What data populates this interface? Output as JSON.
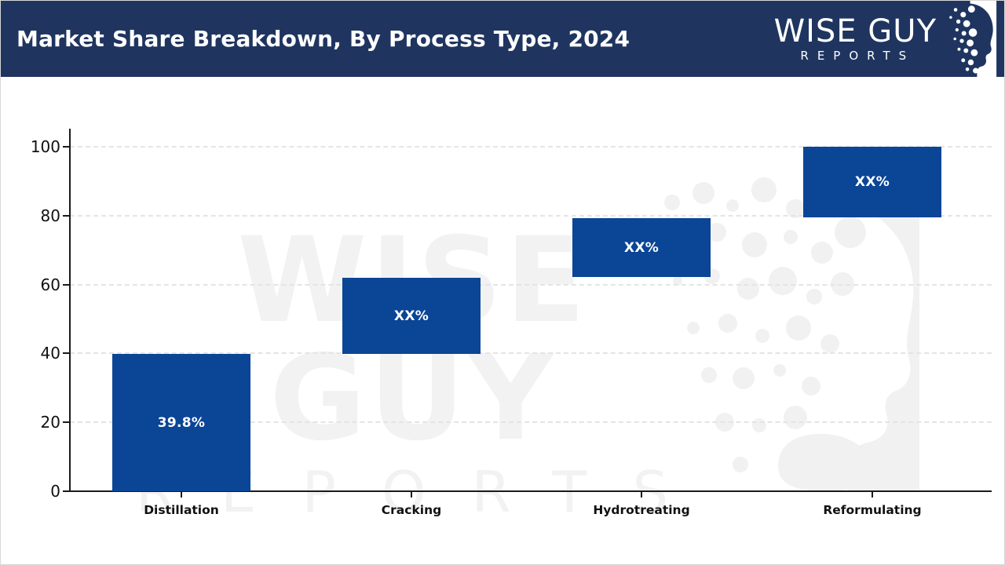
{
  "page": {
    "header": {
      "title": "Market Share Breakdown, By Process Type, 2024",
      "logo_line1": "WISE GUY",
      "logo_line2": "REPORTS"
    },
    "watermark": {
      "line1": "WISE GUY",
      "line2": "REPORTS"
    },
    "colors": {
      "header_bg": "#1f3560",
      "bar_blue": "#0b4596",
      "axis": "#1a1a1a",
      "gridline": "#e4e4e4",
      "watermark_gray": "#f2f2f2",
      "title_text": "#ffffff"
    }
  },
  "chart_data": {
    "type": "bar",
    "subtype": "waterfall",
    "title": "Market Share Breakdown, By Process Type, 2024",
    "categories": [
      "Distillation",
      "Cracking",
      "Hydrotreating",
      "Reformulating"
    ],
    "segments": [
      {
        "category": "Distillation",
        "start": 0,
        "end": 39.8,
        "label": "39.8%"
      },
      {
        "category": "Cracking",
        "start": 39.9,
        "end": 61.9,
        "label": "XX%"
      },
      {
        "category": "Hydrotreating",
        "start": 62.1,
        "end": 79.3,
        "label": "XX%"
      },
      {
        "category": "Reformulating",
        "start": 79.6,
        "end": 100,
        "label": "XX%"
      }
    ],
    "xlabel": "",
    "ylabel": "",
    "ylim": [
      0,
      100
    ],
    "yticks": [
      0,
      20,
      40,
      60,
      80,
      100
    ],
    "grid": "horizontal-dashed",
    "legend": "none",
    "bar_color": "#0b4596",
    "bar_label_color": "#ffffff"
  }
}
